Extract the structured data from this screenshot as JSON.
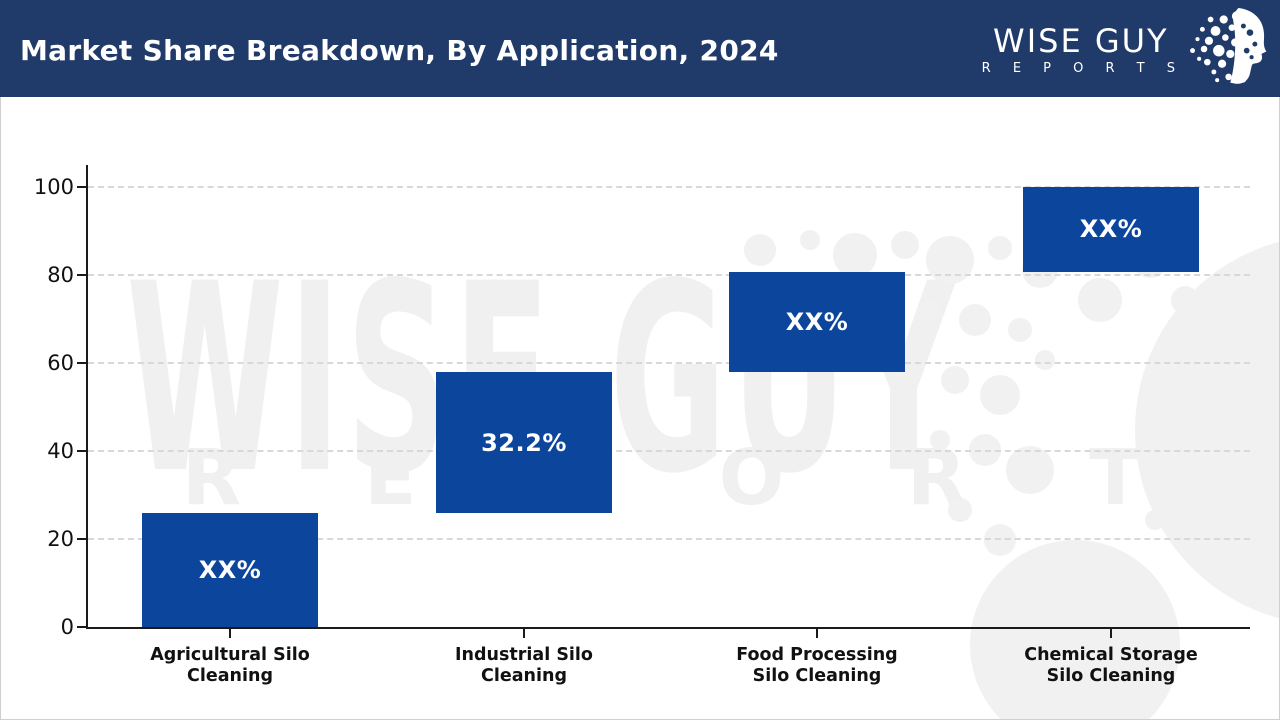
{
  "header": {
    "title": "Market Share Breakdown, By Application, 2024",
    "background_color": "#203a6a",
    "logo": {
      "name": "WISE GUY",
      "tagline": "R E P O R T S",
      "icon": "dot-face-profile-icon"
    }
  },
  "watermark": {
    "line1": "WISE GUY",
    "line2": "R E P O R T S"
  },
  "chart_data": {
    "type": "bar",
    "subtype": "floating_segment_waterfall",
    "title": "Market Share Breakdown, By Application, 2024",
    "categories": [
      "Agricultural Silo Cleaning",
      "Industrial Silo Cleaning",
      "Food Processing Silo Cleaning",
      "Chemical Storage Silo Cleaning"
    ],
    "category_label_lines": [
      [
        "Agricultural Silo",
        "Cleaning"
      ],
      [
        "Industrial Silo",
        "Cleaning"
      ],
      [
        "Food Processing",
        "Silo Cleaning"
      ],
      [
        "Chemical Storage",
        "Silo Cleaning"
      ]
    ],
    "segments": [
      {
        "category": "Agricultural Silo Cleaning",
        "start": 0,
        "end": 25.8,
        "label": "XX%"
      },
      {
        "category": "Industrial Silo Cleaning",
        "start": 25.8,
        "end": 58,
        "label": "32.2%",
        "value": 32.2
      },
      {
        "category": "Food Processing Silo Cleaning",
        "start": 58,
        "end": 80.7,
        "label": "XX%"
      },
      {
        "category": "Chemical Storage Silo Cleaning",
        "start": 80.7,
        "end": 100,
        "label": "XX%"
      }
    ],
    "xlabel": "",
    "ylabel": "",
    "yticks": [
      0,
      20,
      40,
      60,
      80,
      100
    ],
    "ylim": [
      0,
      105
    ],
    "grid": "horizontal-dashed",
    "gridline_color": "#d8d8d8",
    "bar_color": "#0b459c",
    "bar_label_color": "#ffffff",
    "legend": "none"
  }
}
